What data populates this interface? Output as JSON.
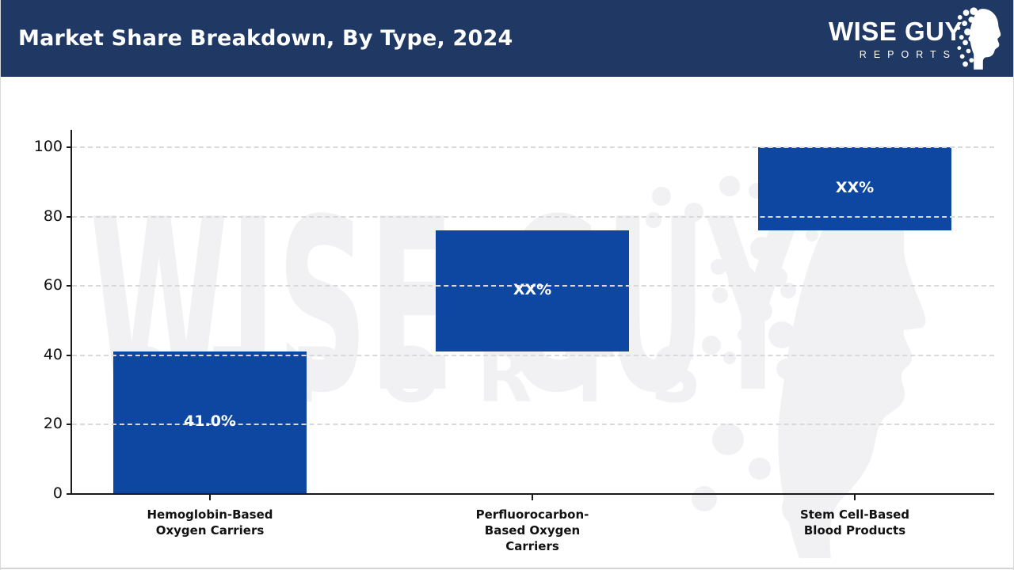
{
  "header": {
    "title": "Market Share Breakdown, By Type, 2024",
    "logo": {
      "name": "WISE GUY",
      "sub": "REPORTS",
      "icon": "face-profile-dots-icon"
    }
  },
  "watermark": {
    "line1": "WISE GUY",
    "line2": "REPORTS"
  },
  "colors": {
    "header_bg": "#1f3864",
    "bar": "#0d47a1",
    "bar_label": "#ffffff",
    "grid": "#d9d9d9",
    "axis": "#1a1a1a",
    "tick_text": "#111111",
    "watermark": "#f1f1f3"
  },
  "chart_data": {
    "type": "bar",
    "subtype": "waterfall-floating-bars",
    "title": "Market Share Breakdown, By Type, 2024",
    "categories": [
      "Hemoglobin-Based Oxygen Carriers",
      "Perfluorocarbon-Based Oxygen Carriers",
      "Stem Cell-Based Blood Products"
    ],
    "categories_lines": [
      [
        "Hemoglobin-Based",
        "Oxygen Carriers"
      ],
      [
        "Perfluorocarbon-",
        "Based Oxygen",
        "Carriers"
      ],
      [
        "Stem Cell-Based",
        "Blood Products"
      ]
    ],
    "values": [
      41.0,
      35.0,
      24.0
    ],
    "segment_start": [
      0,
      41,
      76
    ],
    "segment_end": [
      41,
      76,
      100
    ],
    "bar_labels": [
      "41.0%",
      "XX%",
      "XX%"
    ],
    "ylim": [
      0,
      100
    ],
    "yticks": [
      0,
      20,
      40,
      60,
      80,
      100
    ],
    "xlabel": "",
    "ylabel": "",
    "grid": "dashed-horizontal",
    "legend": "none"
  }
}
